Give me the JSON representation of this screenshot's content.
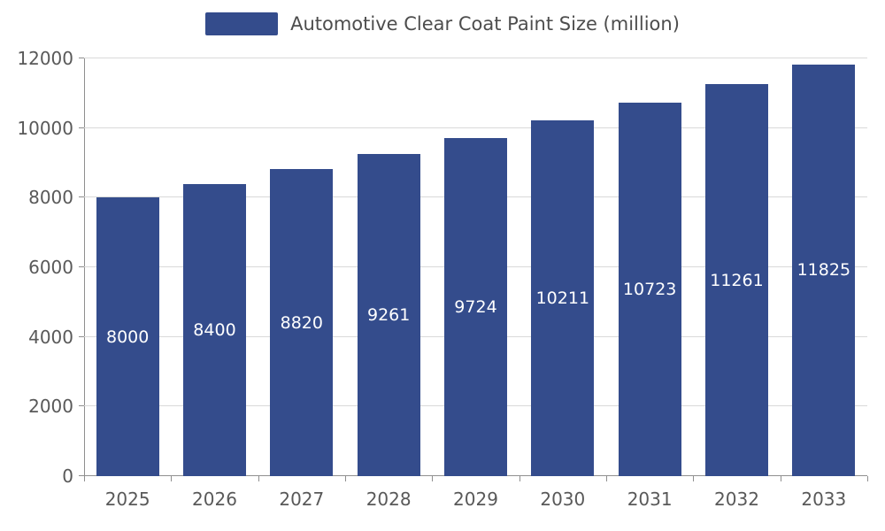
{
  "chart_data": {
    "type": "bar",
    "title": "Automotive Clear Coat Paint Size (million)",
    "categories": [
      "2025",
      "2026",
      "2027",
      "2028",
      "2029",
      "2030",
      "2031",
      "2032",
      "2033"
    ],
    "values": [
      8000,
      8400,
      8820,
      9261,
      9724,
      10211,
      10723,
      11261,
      11825
    ],
    "xlabel": "",
    "ylabel": "",
    "ylim": [
      0,
      12000
    ],
    "y_ticks": [
      0,
      2000,
      4000,
      6000,
      8000,
      10000,
      12000
    ],
    "grid": true,
    "legend_position": "top",
    "colors": {
      "bar": "#344C8C",
      "bar_label": "#ffffff",
      "axis_text": "#595959",
      "gridline": "#d9d9d9",
      "axis_line": "#8f8f8f",
      "legend_text": "#4d4d4d"
    }
  }
}
